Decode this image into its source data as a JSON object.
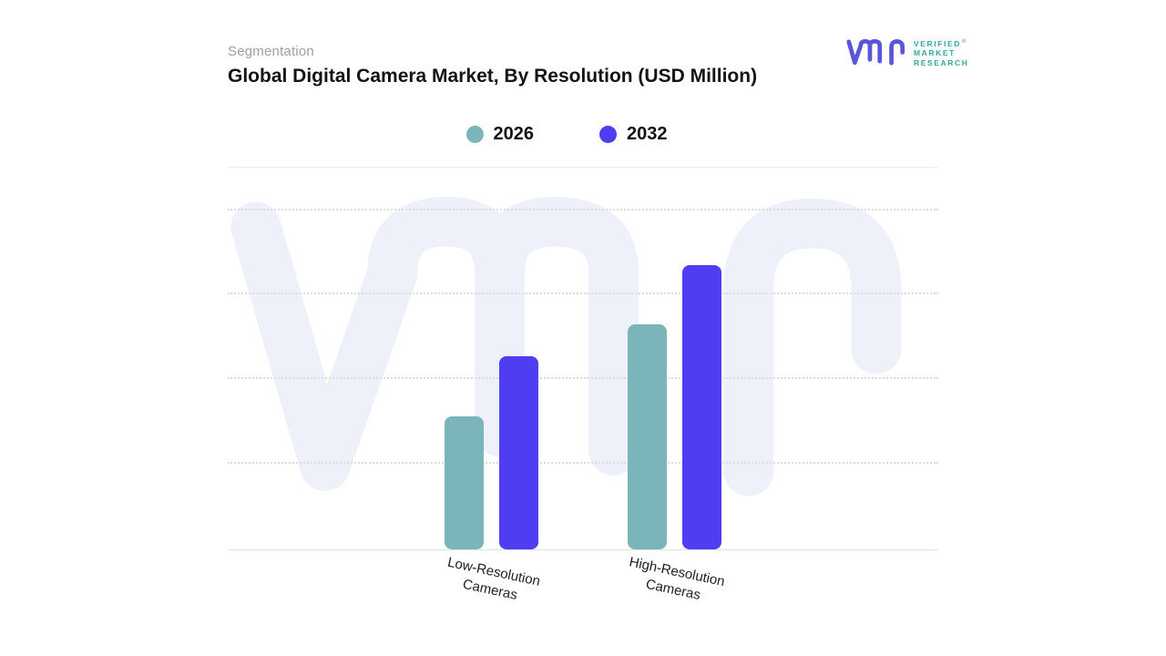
{
  "header": {
    "eyebrow": "Segmentation",
    "title": "Global Digital Camera Market, By Resolution (USD Million)"
  },
  "brand": {
    "glyph_icon": "vmr-logo",
    "lines": [
      "VERIFIED",
      "MARKET",
      "RESEARCH"
    ],
    "registered": "®",
    "glyph_color": "#5a55d9",
    "text_color": "#35a79e"
  },
  "legend": {
    "position": "top-center",
    "items": [
      {
        "label": "2026",
        "color": "#7cb5b9"
      },
      {
        "label": "2032",
        "color": "#4f3df2"
      }
    ]
  },
  "chart_data": {
    "type": "bar",
    "title": "Global Digital Camera Market, By Resolution (USD Million)",
    "subtitle": "Segmentation",
    "units": "USD Million",
    "categories": [
      "Low-Resolution Cameras",
      "High-Resolution Cameras"
    ],
    "category_label_lines": [
      [
        "Low-Resolution",
        "Cameras"
      ],
      [
        "High-Resolution",
        "Cameras"
      ]
    ],
    "series": [
      {
        "name": "2026",
        "color": "#7cb5b9",
        "values": [
          1.57,
          2.66
        ]
      },
      {
        "name": "2032",
        "color": "#4f3df2",
        "values": [
          2.28,
          3.35
        ]
      }
    ],
    "xlabel": "",
    "ylabel": "",
    "ylim": [
      0,
      4.5
    ],
    "y_tick_labels_visible": false,
    "grid": "horizontal-dotted",
    "legend_position": "top-center",
    "watermark": {
      "name": "vmr-watermark",
      "color": "#eff1fa"
    }
  }
}
